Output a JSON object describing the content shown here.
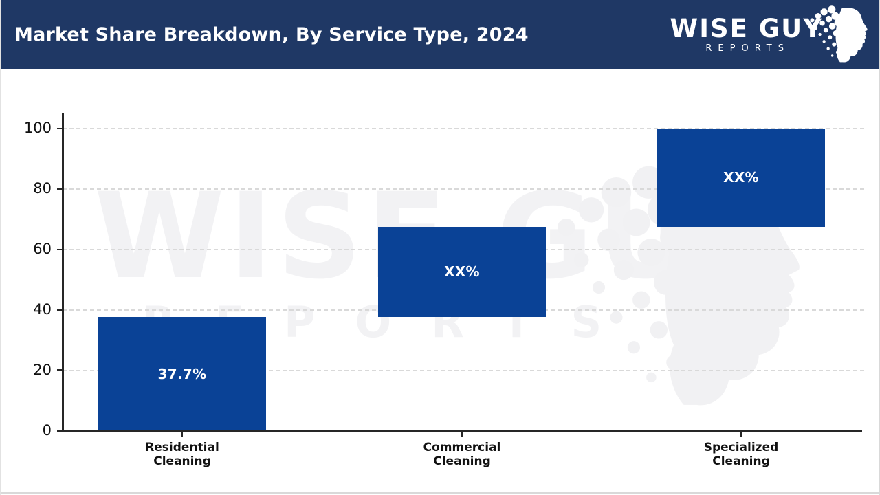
{
  "header": {
    "title": "Market Share Breakdown, By Service Type, 2024",
    "logo": {
      "wordmark": "WISE GUY",
      "subtitle": "REPORTS"
    }
  },
  "watermark": {
    "wordmark": "WISE GUY",
    "subtitle": "REPORTS"
  },
  "chart_data": {
    "type": "bar",
    "subtype": "stacked-waterfall-percent",
    "title": "Market Share Breakdown, By Service Type, 2024",
    "categories": [
      "Residential Cleaning",
      "Commercial Cleaning",
      "Specialized Cleaning"
    ],
    "category_lines": [
      [
        "Residential",
        "Cleaning"
      ],
      [
        "Commercial",
        "Cleaning"
      ],
      [
        "Specialized",
        "Cleaning"
      ]
    ],
    "segments": [
      {
        "category": "Residential Cleaning",
        "start": 0,
        "end": 37.7,
        "value": 37.7,
        "label": "37.7%"
      },
      {
        "category": "Commercial Cleaning",
        "start": 37.7,
        "end": 67.5,
        "value": 29.8,
        "label": "XX%"
      },
      {
        "category": "Specialized Cleaning",
        "start": 67.5,
        "end": 100,
        "value": 32.5,
        "label": "XX%"
      }
    ],
    "xlabel": "",
    "ylabel": "",
    "yticks": [
      0,
      20,
      40,
      60,
      80,
      100
    ],
    "ylim": [
      0,
      105
    ],
    "grid": "dashed-horizontal",
    "legend": "none",
    "colors": {
      "bar": "#0a4296",
      "bar_label": "#ffffff",
      "header_bg": "#1f3865",
      "grid_line": "#d9d9d9",
      "axis_line": "#262626",
      "tick_label": "#111111",
      "watermark": "#f2f2f4"
    }
  }
}
